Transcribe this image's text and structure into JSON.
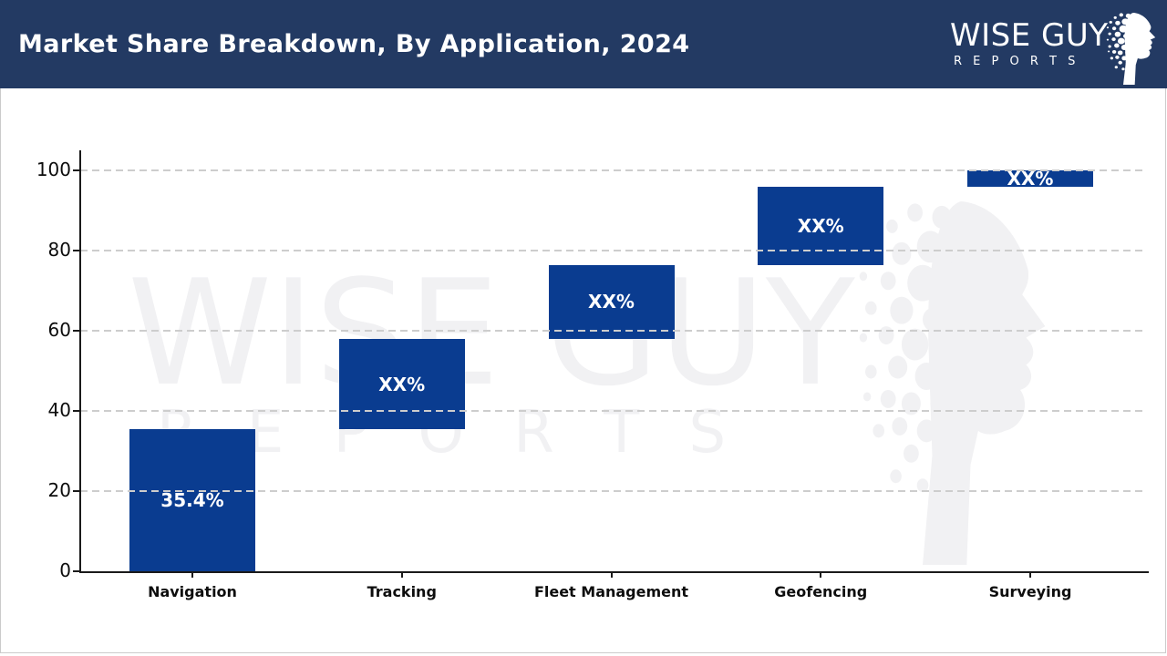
{
  "header": {
    "title": "Market Share Breakdown, By Application, 2024",
    "logo": {
      "brand_line1": "WISE GUY",
      "brand_line2": "R E P O R T S",
      "face_icon": "dotted-head-profile-icon"
    }
  },
  "watermark": {
    "line1": "WISE GUY",
    "line2": "R E P O R T S",
    "face_icon": "dotted-head-profile-icon"
  },
  "colors": {
    "header_bg": "#233A63",
    "bar_fill": "#0A3C90",
    "bar_label_text": "#FFFFFF",
    "grid_line": "#CDCDCD",
    "axis_line": "#1A1A1A",
    "tick_text": "#0D0D0D",
    "title_text": "#FFFFFF",
    "watermark": "#F1F1F3"
  },
  "chart_data": {
    "type": "bar",
    "variant": "waterfall",
    "title": "Market Share Breakdown, By Application, 2024",
    "categories": [
      "Navigation",
      "Tracking",
      "Fleet Management",
      "Geofencing",
      "Surveying"
    ],
    "segments": [
      {
        "category": "Navigation",
        "start": 0,
        "end": 35.4,
        "label": "35.4%"
      },
      {
        "category": "Tracking",
        "start": 35.4,
        "end": 58.0,
        "label": "XX%"
      },
      {
        "category": "Fleet Management",
        "start": 58.0,
        "end": 76.4,
        "label": "XX%"
      },
      {
        "category": "Geofencing",
        "start": 76.4,
        "end": 96.0,
        "label": "XX%"
      },
      {
        "category": "Surveying",
        "start": 96.0,
        "end": 100.0,
        "label": "XX%"
      }
    ],
    "xlabel": "",
    "ylabel": "",
    "yticks": [
      0,
      20,
      40,
      60,
      80,
      100
    ],
    "ylim": [
      0,
      105
    ],
    "grid": "horizontal-dashed",
    "grid_above_bars": true,
    "legend": "none"
  }
}
